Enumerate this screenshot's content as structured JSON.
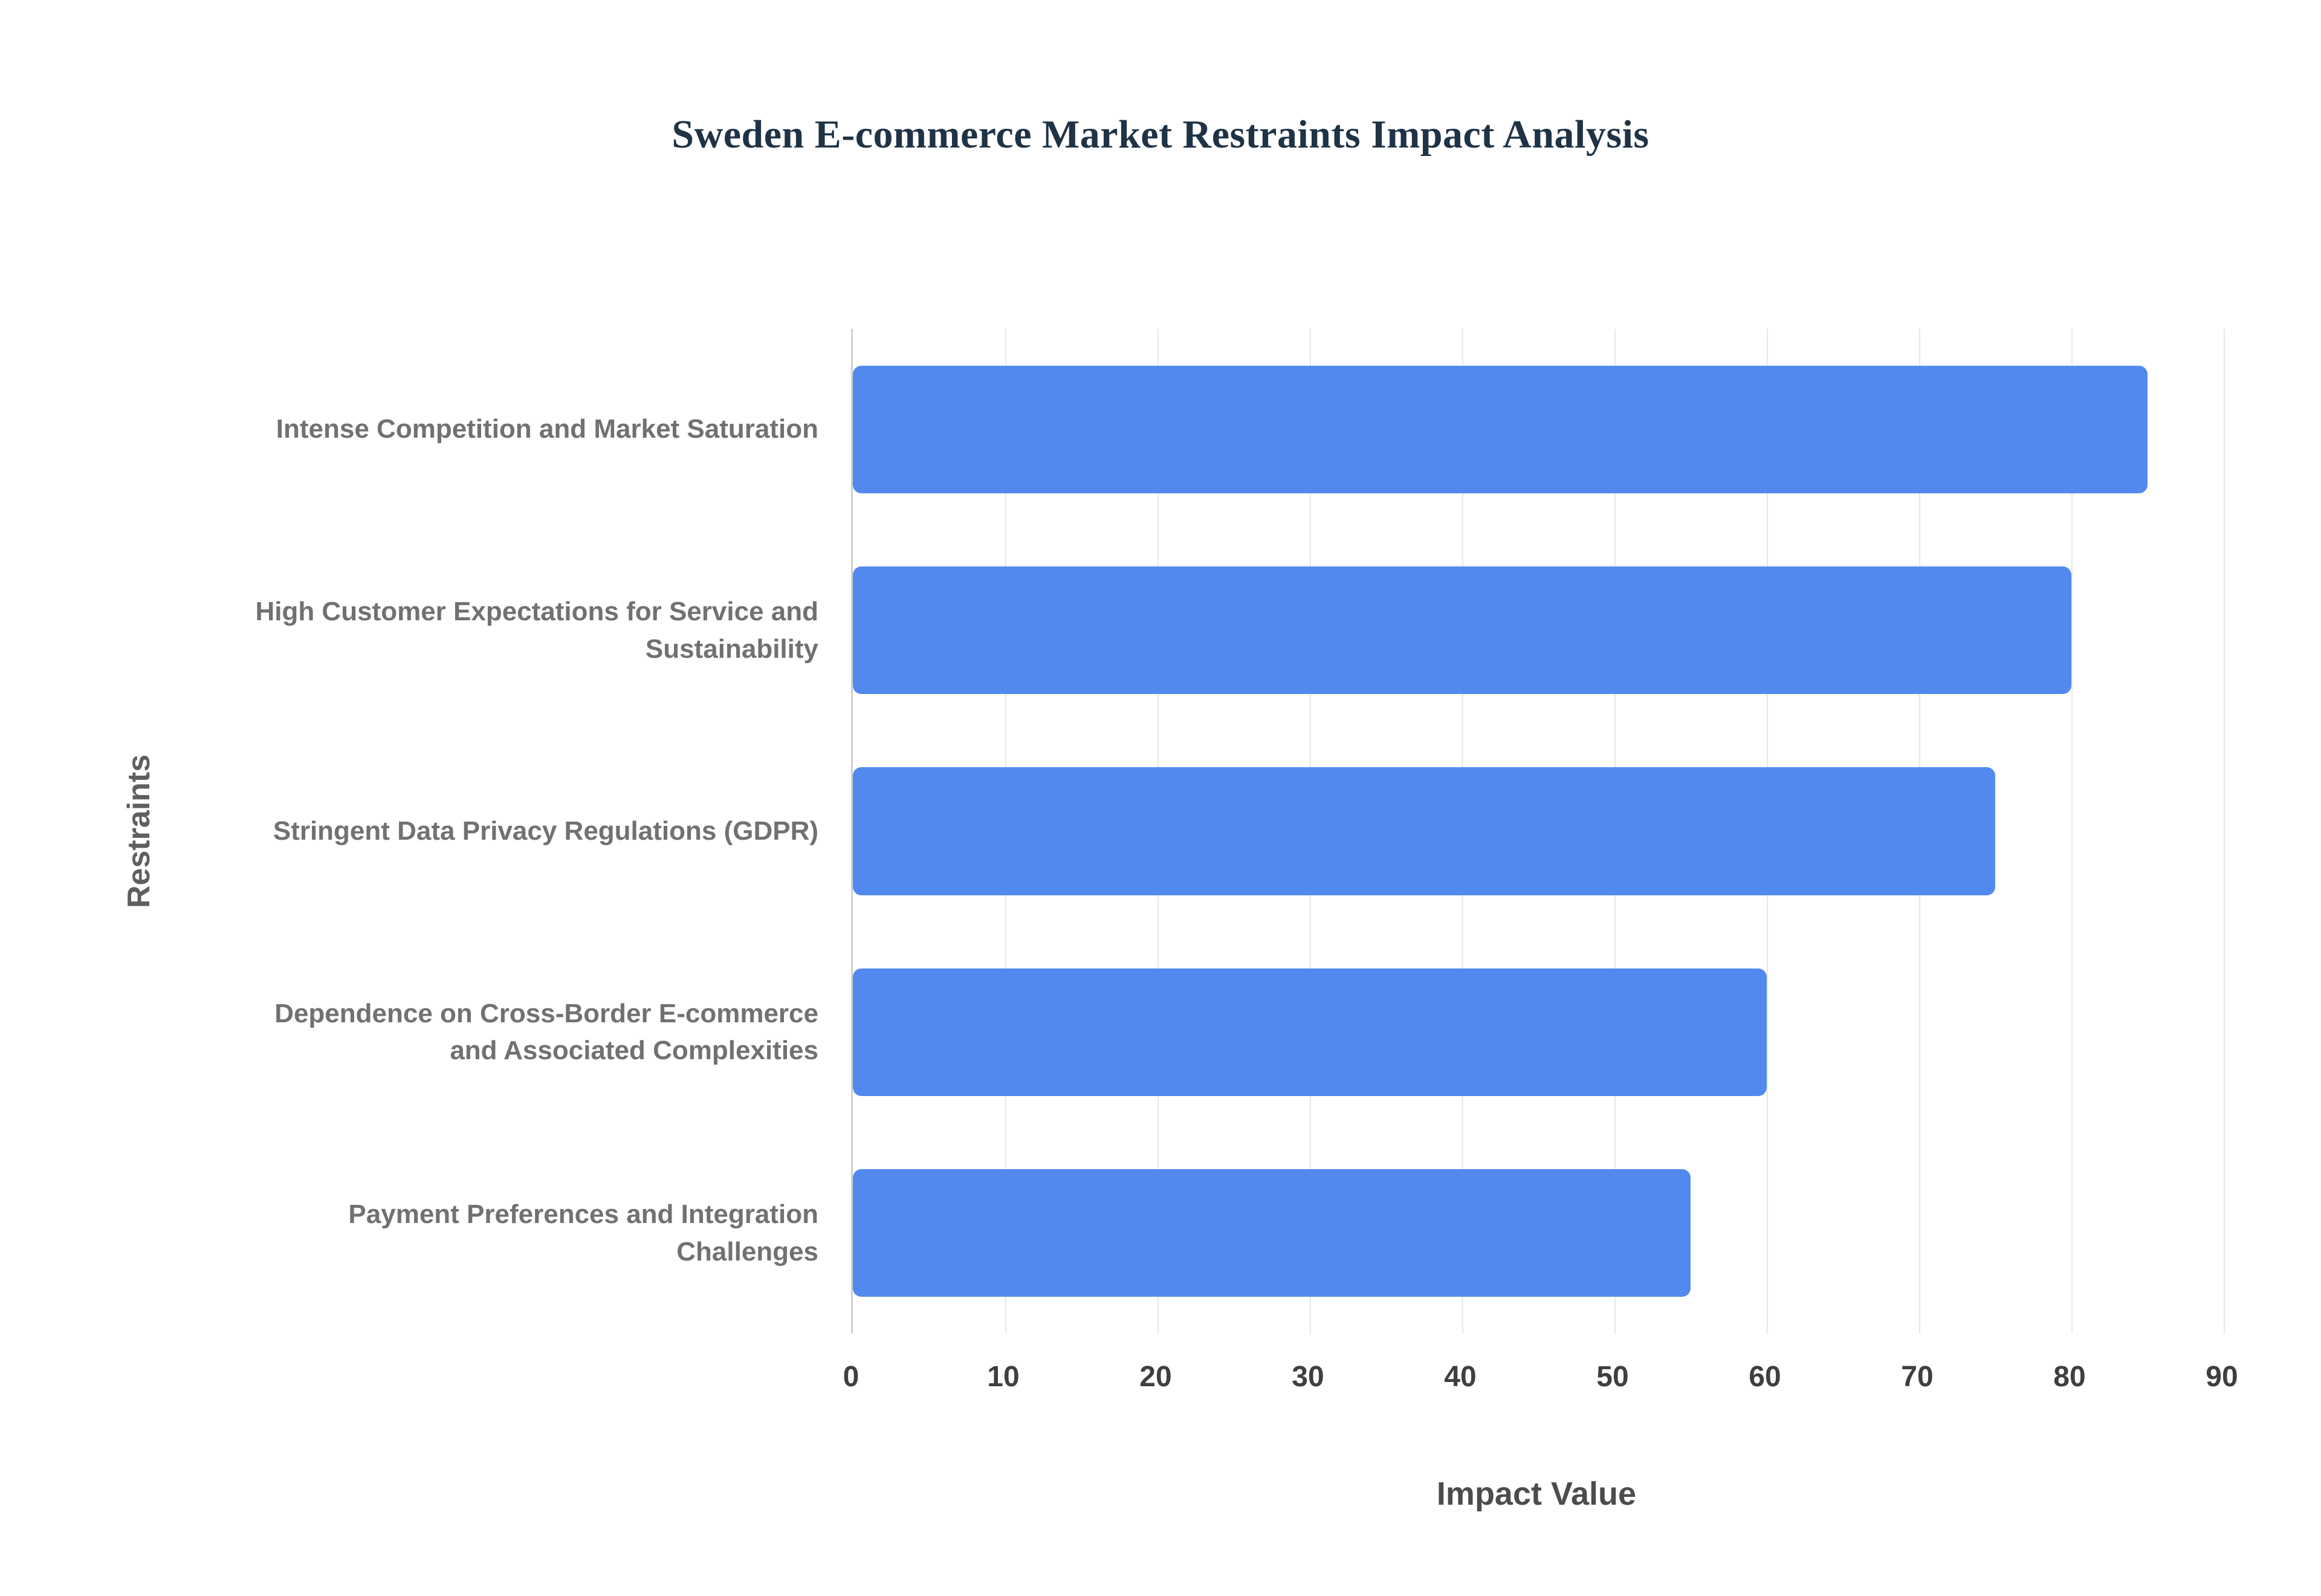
{
  "title": "Sweden E-commerce Market Restraints Impact Analysis",
  "colors": {
    "bar_fill": "#5289ef",
    "title_text": "#1f3346",
    "category_label": "#717171",
    "tick_label": "#3f3f3f",
    "gridline": "#e7e7e7",
    "axis_line": "#cfcfcf",
    "background": "#ffffff"
  },
  "chart_data": {
    "type": "bar",
    "orientation": "horizontal",
    "title": "Sweden E-commerce Market Restraints Impact Analysis",
    "xlabel": "Impact Value",
    "ylabel": "Restraints",
    "categories": [
      "Intense Competition and Market Saturation",
      "High Customer Expectations for Service and Sustainability",
      "Stringent Data Privacy Regulations (GDPR)",
      "Dependence on Cross-Border E-commerce and Associated Complexities",
      "Payment Preferences and Integration Challenges"
    ],
    "values": [
      85,
      80,
      75,
      60,
      55
    ],
    "xlim": [
      0,
      90
    ],
    "xticks": [
      0,
      10,
      20,
      30,
      40,
      50,
      60,
      70,
      80,
      90
    ],
    "grid": true,
    "legend": false
  }
}
